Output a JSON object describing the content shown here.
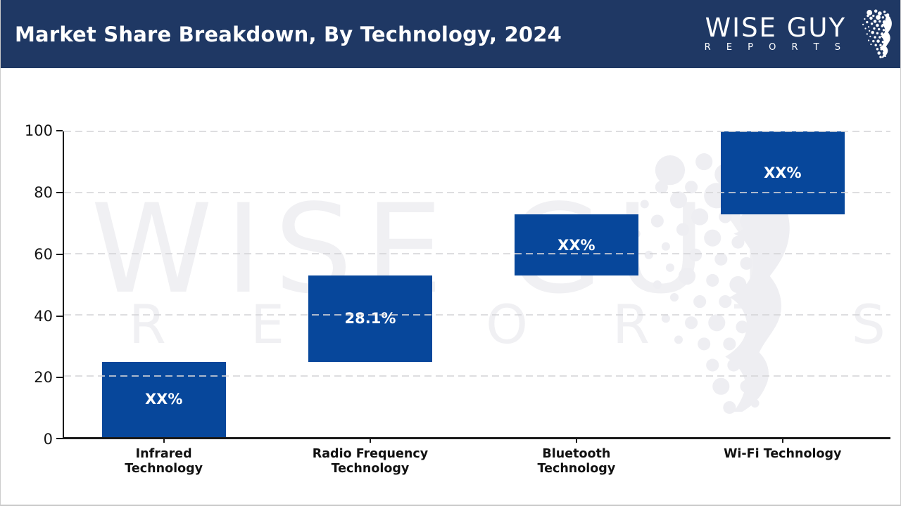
{
  "header": {
    "title": "Market Share Breakdown, By Technology, 2024",
    "bg_color": "#1f3864",
    "logo": {
      "name": "WISE GUY",
      "sub": "R E P O R T S"
    }
  },
  "watermark": {
    "line1": "WISE GUY",
    "line2": "R E P O R T S"
  },
  "chart_data": {
    "type": "bar",
    "subtype": "waterfall",
    "title": "Market Share Breakdown, By Technology, 2024",
    "categories": [
      "Infrared Technology",
      "Radio Frequency Technology",
      "Bluetooth Technology",
      "Wi-Fi Technology"
    ],
    "cat_lines": [
      [
        "Infrared",
        "Technology"
      ],
      [
        "Radio Frequency",
        "Technology"
      ],
      [
        "Bluetooth",
        "Technology"
      ],
      [
        "Wi-Fi Technology"
      ]
    ],
    "bars": [
      {
        "label": "XX%",
        "start": 0,
        "end": 24.7
      },
      {
        "label": "28.1%",
        "start": 24.7,
        "end": 52.8
      },
      {
        "label": "XX%",
        "start": 52.8,
        "end": 72.9
      },
      {
        "label": "XX%",
        "start": 72.9,
        "end": 100
      }
    ],
    "bar_color": "#07479b",
    "y_ticks": [
      0,
      20,
      40,
      60,
      80,
      100
    ],
    "ylim": [
      0,
      100
    ],
    "grid": "horizontal dashed, drawn over bars",
    "legend": "none"
  }
}
